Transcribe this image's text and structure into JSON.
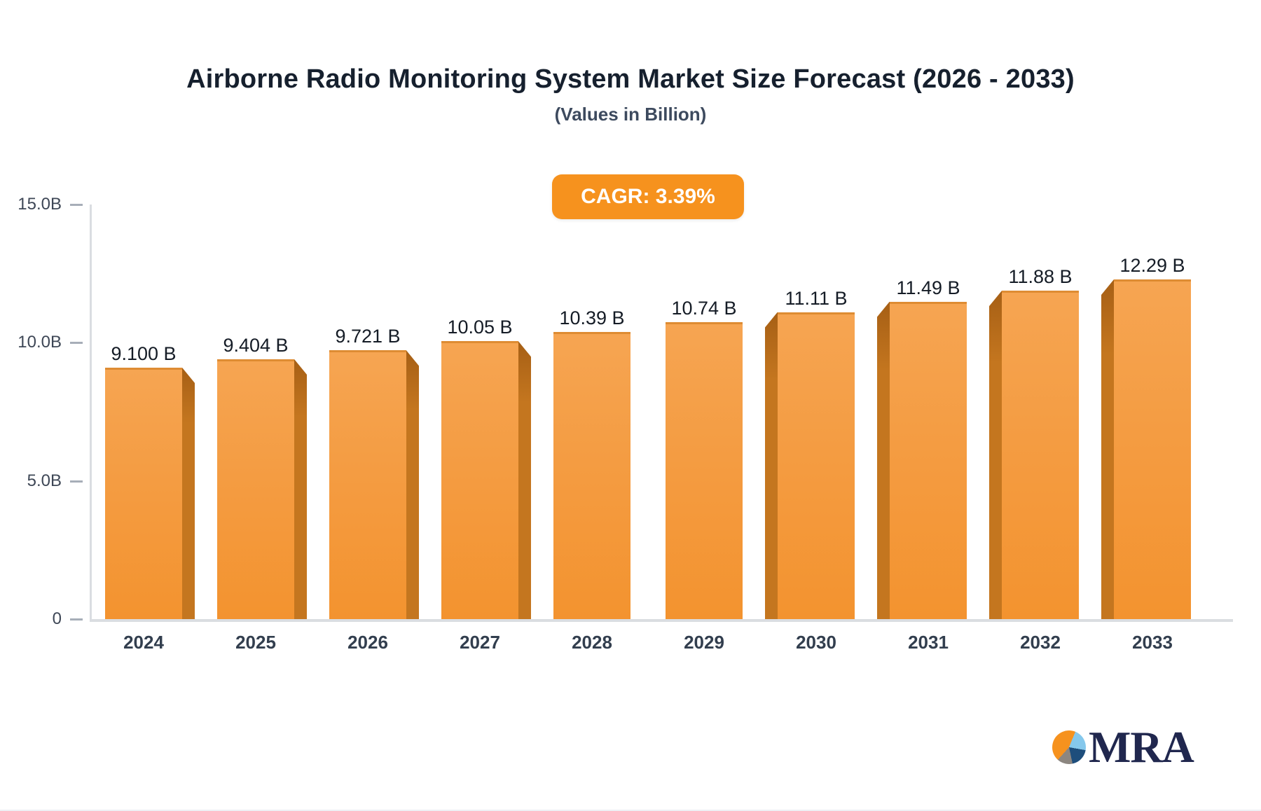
{
  "header": {
    "title": "Airborne Radio Monitoring System Market Size Forecast (2026 - 2033)",
    "subtitle": "(Values in Billion)"
  },
  "badge": {
    "label": "CAGR: 3.39%"
  },
  "chart_data": {
    "type": "bar",
    "title": "Airborne Radio Monitoring System Market Size Forecast (2026 - 2033)",
    "subtitle": "(Values in Billion)",
    "cagr_label": "CAGR: 3.39%",
    "categories": [
      "2024",
      "2025",
      "2026",
      "2027",
      "2028",
      "2029",
      "2030",
      "2031",
      "2032",
      "2033"
    ],
    "values": [
      9.1,
      9.404,
      9.721,
      10.05,
      10.39,
      10.74,
      11.11,
      11.49,
      11.88,
      12.29
    ],
    "value_labels": [
      "9.100 B",
      "9.404 B",
      "9.721 B",
      "10.05 B",
      "10.39 B",
      "10.74 B",
      "11.11 B",
      "11.49 B",
      "11.88 B",
      "12.29 B"
    ],
    "xlabel": "",
    "ylabel": "",
    "ylim": [
      0,
      15
    ],
    "yticks": [
      {
        "label": "15.0B",
        "value": 15
      },
      {
        "label": "10.0B",
        "value": 10
      },
      {
        "label": "5.0B",
        "value": 5
      },
      {
        "label": "0",
        "value": 0
      }
    ],
    "grid": "off",
    "legend": "none",
    "bar_style": "3d-extruded"
  },
  "logo": {
    "text": "MRA"
  },
  "colors": {
    "accent": "#f6921e",
    "bar_face_top": "#f6a552",
    "bar_face_bottom": "#f3932f",
    "bar_side": "#c4761f",
    "bar_side_dark": "#a65f15",
    "axis": "#dadde1",
    "title_text": "#16202e",
    "subtitle_text": "#3d4a5e",
    "pie_lightblue": "#85c8ec",
    "pie_navy": "#1e4e7c",
    "pie_gray": "#8c8680",
    "logo_text": "#20274e"
  }
}
